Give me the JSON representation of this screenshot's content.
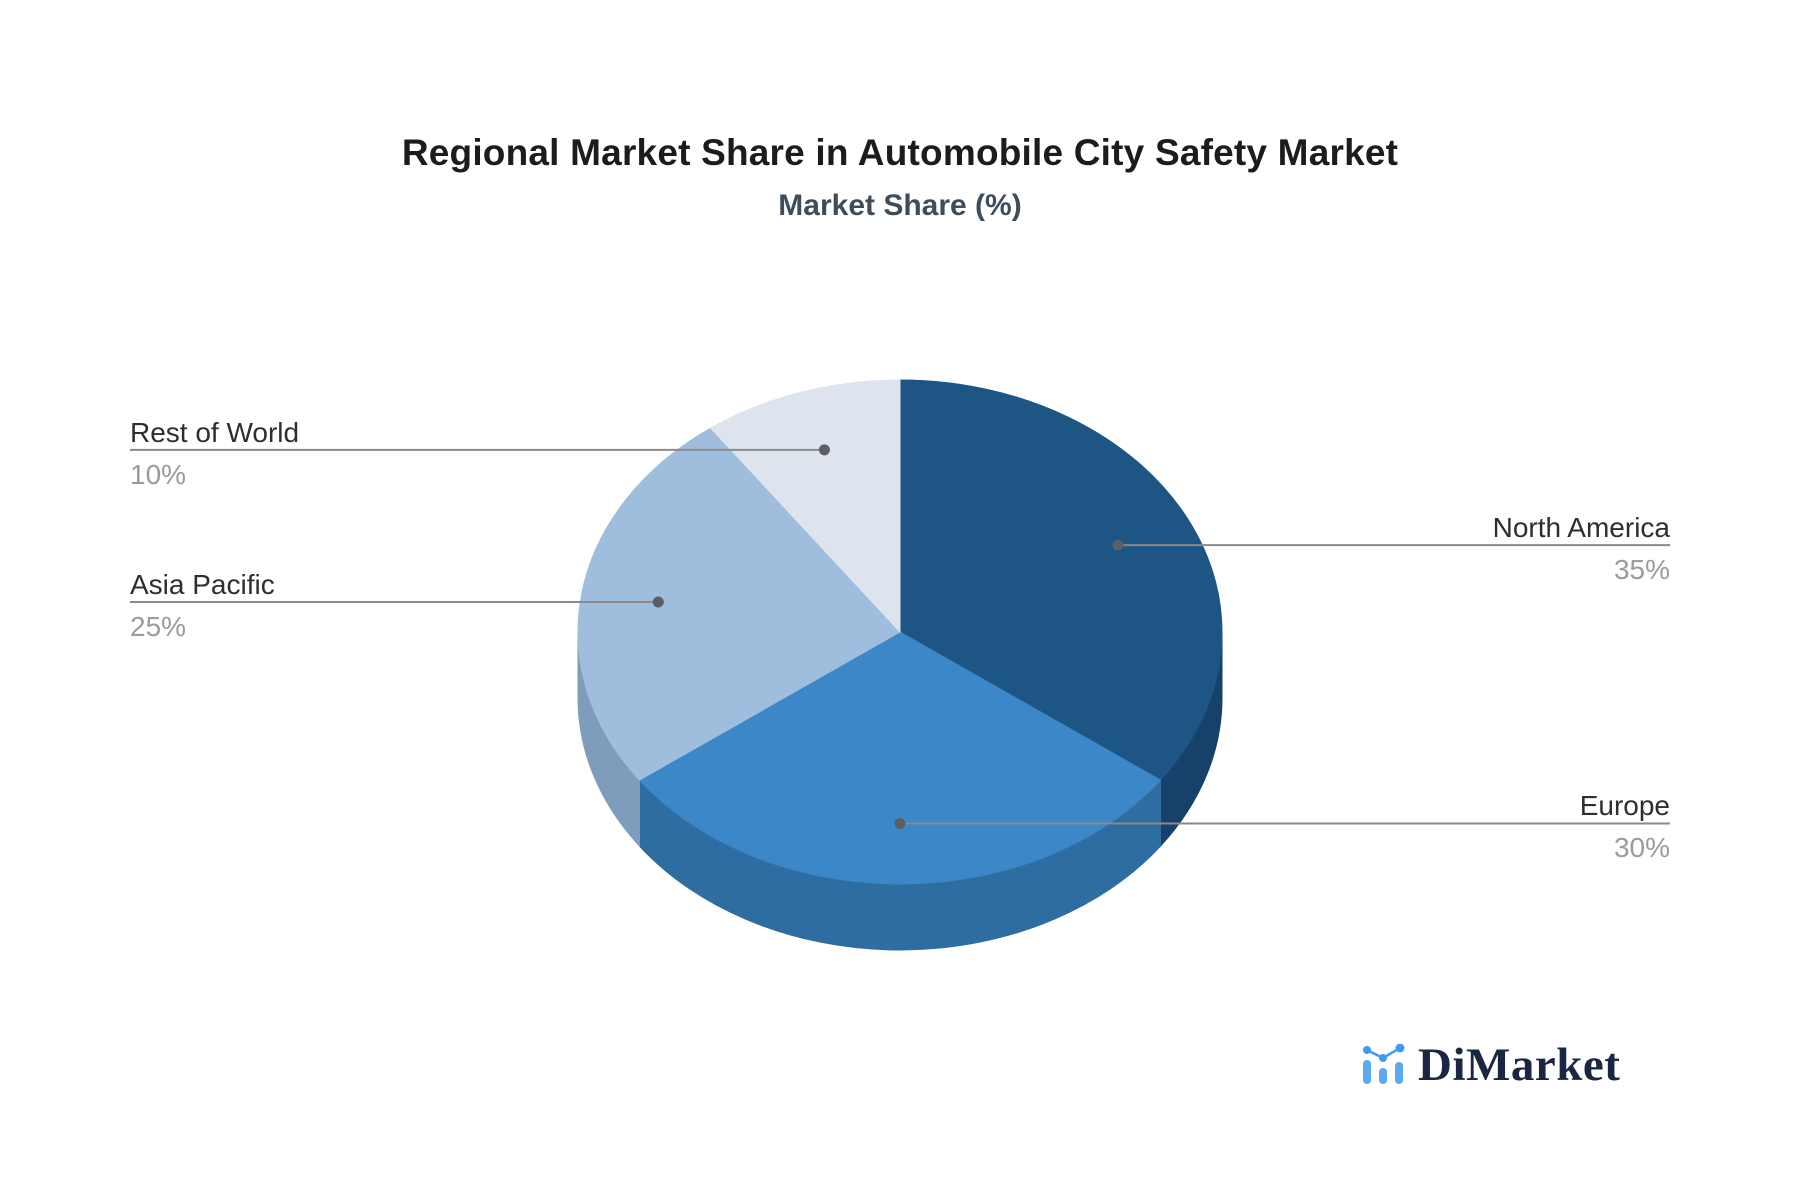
{
  "chart_data": {
    "type": "pie",
    "title": "Regional Market Share in Automobile City Safety Market",
    "subtitle": "Market Share (%)",
    "unit": "%",
    "style": "3d-pie",
    "legend": "none",
    "start_angle_deg": 0,
    "direction": "clockwise",
    "categories": [
      "North America",
      "Europe",
      "Asia Pacific",
      "Rest of World"
    ],
    "values": [
      35,
      30,
      25,
      10
    ],
    "slices": [
      {
        "label": "North America",
        "value": 35,
        "pct_label": "35%",
        "color": "#1d5584",
        "side_color": "#16416b",
        "label_side": "right"
      },
      {
        "label": "Europe",
        "value": 30,
        "pct_label": "30%",
        "color": "#3b87c8",
        "side_color": "#2e6da1",
        "label_side": "right"
      },
      {
        "label": "Asia Pacific",
        "value": 25,
        "pct_label": "25%",
        "color": "#9fbddc",
        "side_color": "#7e9cbc",
        "label_side": "left"
      },
      {
        "label": "Rest of World",
        "value": 10,
        "pct_label": "10%",
        "color": "#dde4ee",
        "side_color": "#b9c5d5",
        "label_side": "left"
      }
    ],
    "leader_line_color": "#8a8a8a",
    "leader_dot_color": "#5b5e62",
    "label_name_color": "#2e2e2e",
    "label_pct_color": "#9b9b9b"
  },
  "logo": {
    "text": "DiMarket",
    "icon": "bar-line-chart-icon",
    "text_color": "#1b2742",
    "bar_color": "#5aa9f1",
    "line_color": "#3e9bf0"
  }
}
